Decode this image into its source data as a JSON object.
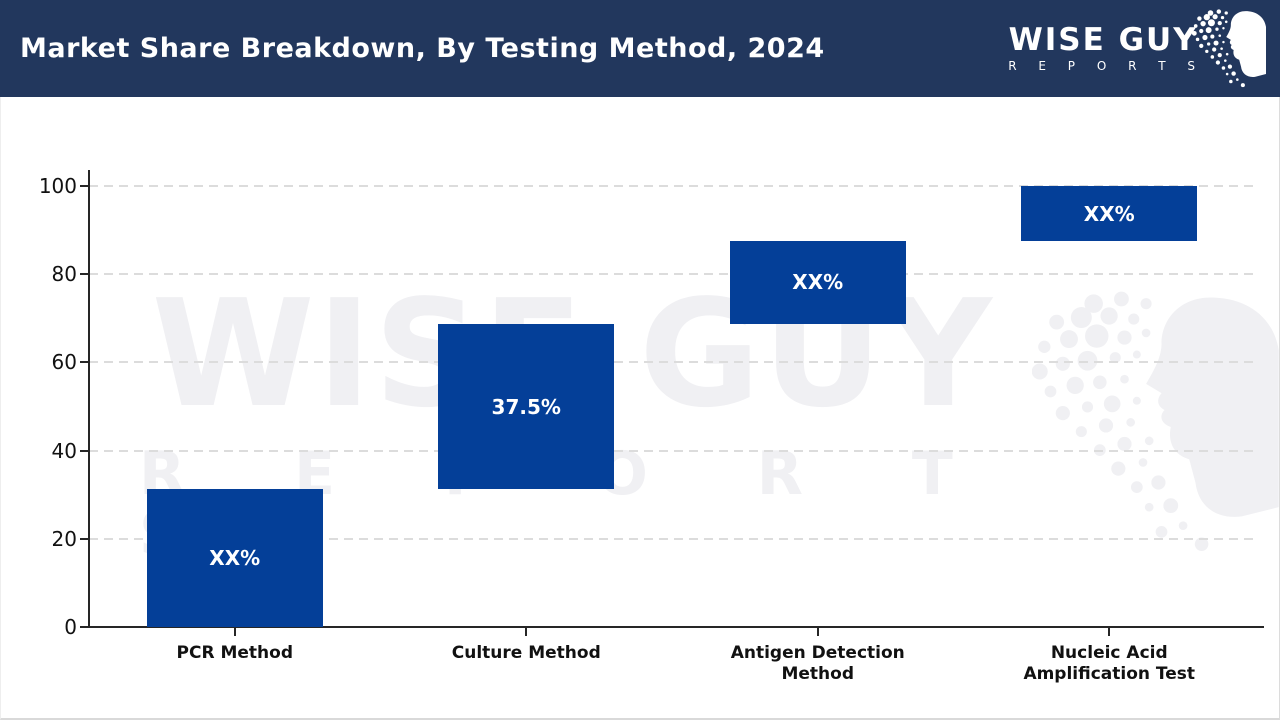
{
  "header": {
    "title": "Market Share Breakdown, By Testing Method, 2024",
    "logo": {
      "line1": "WISE GUY",
      "line2": "R E P O R T S"
    }
  },
  "watermark": {
    "line1": "WISE GUY",
    "line2": "R E P O R T S"
  },
  "chart_data": {
    "type": "bar",
    "subtype": "waterfall",
    "title": "Market Share Breakdown, By Testing Method, 2024",
    "categories": [
      "PCR Method",
      "Culture Method",
      "Antigen Detection Method",
      "Nucleic Acid Amplification Test"
    ],
    "bars": [
      {
        "category": "PCR Method",
        "start": 0,
        "end": 31.25,
        "label": "XX%"
      },
      {
        "category": "Culture Method",
        "start": 31.25,
        "end": 68.75,
        "label": "37.5%"
      },
      {
        "category": "Antigen Detection Method",
        "start": 68.75,
        "end": 87.5,
        "label": "XX%"
      },
      {
        "category": "Nucleic Acid Amplification Test",
        "start": 87.5,
        "end": 100,
        "label": "XX%"
      }
    ],
    "yticks": [
      0,
      20,
      40,
      60,
      80,
      100
    ],
    "ylim": [
      0,
      100
    ],
    "xlabel": "",
    "ylabel": "",
    "grid": "horizontal-dashed",
    "legend": "none",
    "bar_color": "#043f98",
    "bar_label_color": "#ffffff"
  },
  "colors": {
    "header_bg": "#22375d",
    "bar": "#043f98",
    "grid": "#dcdcdc",
    "axis": "#262626",
    "watermark": "#f0f0f3"
  }
}
